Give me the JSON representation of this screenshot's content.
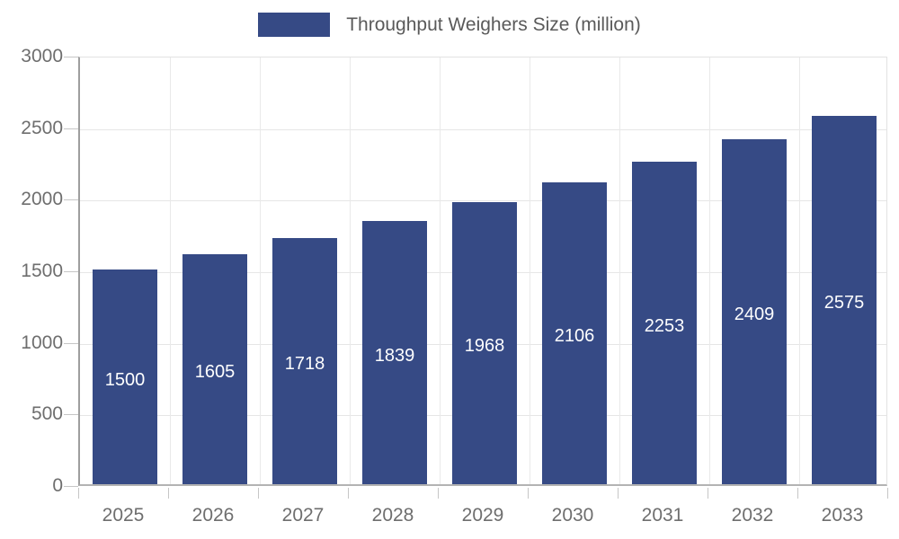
{
  "chart_data": {
    "type": "bar",
    "title": "",
    "legend_label": "Throughput Weighers Size (million)",
    "legend_position": "top",
    "categories": [
      "2025",
      "2026",
      "2027",
      "2028",
      "2029",
      "2030",
      "2031",
      "2032",
      "2033"
    ],
    "series": [
      {
        "name": "Throughput Weighers Size (million)",
        "values": [
          1500,
          1605,
          1718,
          1839,
          1968,
          2106,
          2253,
          2409,
          2575
        ]
      }
    ],
    "value_labels": [
      "1500",
      "1605",
      "1718",
      "1839",
      "1968",
      "2106",
      "2253",
      "2409",
      "2575"
    ],
    "xlabel": "",
    "ylabel": "",
    "ylim": [
      0,
      3000
    ],
    "yticks": [
      0,
      500,
      1000,
      1500,
      2000,
      2500,
      3000
    ],
    "grid": true,
    "colors": {
      "bar": "#364a85",
      "value_label_text": "#ffffff",
      "axis_text": "#6e6e6e",
      "legend_text": "#5a5a5a",
      "gridline": "#e6e6e6"
    }
  }
}
